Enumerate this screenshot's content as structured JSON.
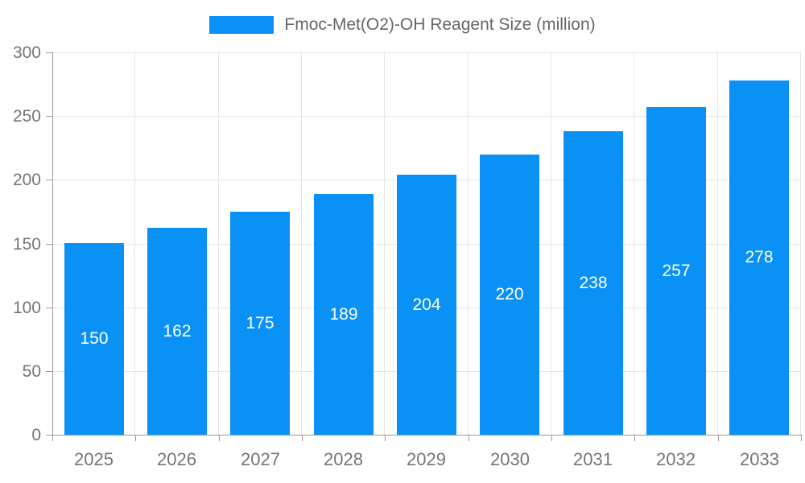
{
  "legend": {
    "label": "Fmoc-Met(O2)-OH Reagent Size (million)"
  },
  "chart_data": {
    "type": "bar",
    "title": "Fmoc-Met(O2)-OH Reagent Size (million)",
    "categories": [
      "2025",
      "2026",
      "2027",
      "2028",
      "2029",
      "2030",
      "2031",
      "2032",
      "2033"
    ],
    "values": [
      150,
      162,
      175,
      189,
      204,
      220,
      238,
      257,
      278
    ],
    "xlabel": "",
    "ylabel": "",
    "ylim": [
      0,
      300
    ],
    "yticks": [
      0,
      50,
      100,
      150,
      200,
      250,
      300
    ],
    "grid": true,
    "legend_position": "top-center",
    "value_labels": "inside-center",
    "colors": {
      "bar": "#0a91f5",
      "grid": "#e6e6e6",
      "axis": "#9a9a9a",
      "tick_text": "#757575",
      "legend_text": "#666666",
      "value_text": "#ffffff",
      "background": "#ffffff"
    }
  }
}
